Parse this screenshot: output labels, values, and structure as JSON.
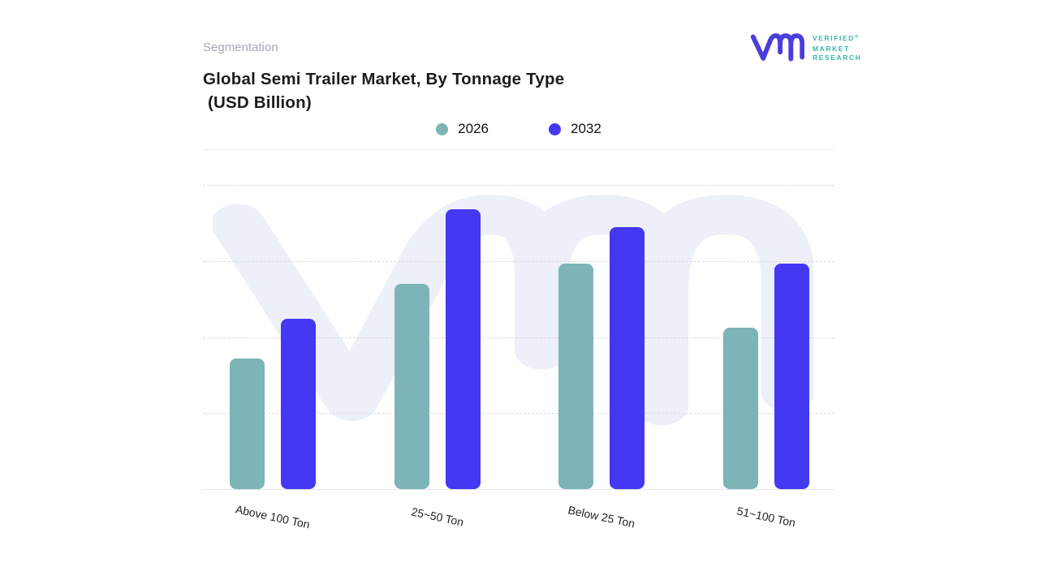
{
  "header": {
    "eyebrow": "Segmentation",
    "title_line1": "Global Semi Trailer Market, By Tonnage Type",
    "title_line2": "(USD Billion)"
  },
  "logo": {
    "name": "verified-market-research",
    "lines": [
      "VERIFIED",
      "MARKET",
      "RESEARCH"
    ],
    "registered": "®",
    "mark_color": "#4b3edc",
    "text_color": "#38b6ab"
  },
  "chart_data": {
    "type": "bar",
    "title": "Global Semi Trailer Market, By Tonnage Type (USD Billion)",
    "categories": [
      "Above 100 Ton",
      "25~50 Ton",
      "Below 25 Ton",
      "51~100 Ton"
    ],
    "series": [
      {
        "name": "2026",
        "color": "#7cb4b8",
        "values": [
          43,
          67.5,
          74,
          53
        ]
      },
      {
        "name": "2032",
        "color": "#4438f2",
        "values": [
          56,
          92,
          86,
          74
        ]
      }
    ],
    "xlabel": "",
    "ylabel": "",
    "ylim": [
      0,
      100
    ],
    "y_tick_labels_visible": false,
    "grid": "horizontal-dashed",
    "legend_position": "top-center"
  },
  "watermark": {
    "name": "vmr-monogram",
    "color": "#edeff9"
  }
}
